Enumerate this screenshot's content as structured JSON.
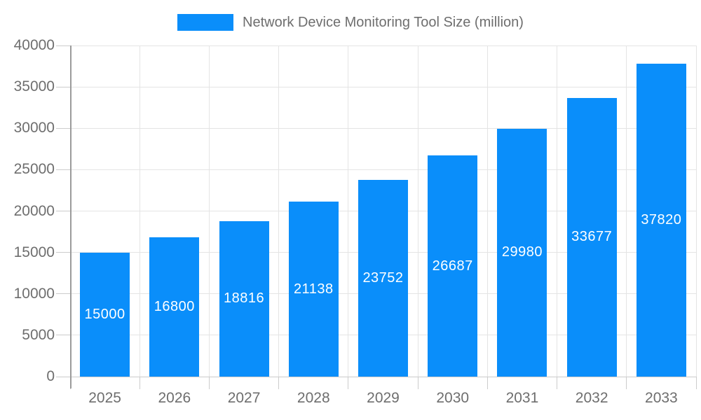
{
  "legend": {
    "label": "Network Device Monitoring Tool Size (million)"
  },
  "chart_data": {
    "type": "bar",
    "title": "Network Device Monitoring Tool Size (million)",
    "categories": [
      "2025",
      "2026",
      "2027",
      "2028",
      "2029",
      "2030",
      "2031",
      "2032",
      "2033"
    ],
    "values": [
      15000,
      16800,
      18816,
      21138,
      23752,
      26687,
      29980,
      33677,
      37820
    ],
    "xlabel": "",
    "ylabel": "",
    "ylim": [
      0,
      40000
    ],
    "ytick_step": 5000,
    "ytick_labels": [
      "0",
      "5000",
      "10000",
      "15000",
      "20000",
      "25000",
      "30000",
      "35000",
      "40000"
    ],
    "grid": "horizontal-and-vertical",
    "legend_position": "top-center",
    "bar_label_position": "inside-center",
    "colors": {
      "bar": "#0a8efa",
      "bar_label_text": "#ffffff",
      "axis_text": "#6e6e6e",
      "gridline": "#e4e4e4",
      "tick": "#cccccc",
      "zero_line": "#cccccc",
      "axis_line": "#9b9b9b",
      "background": "#ffffff"
    }
  }
}
